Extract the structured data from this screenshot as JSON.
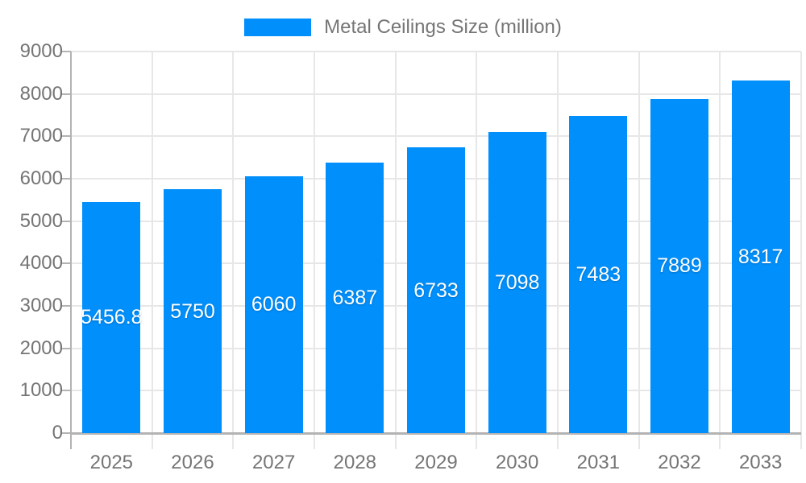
{
  "chart_data": {
    "type": "bar",
    "title": "",
    "xlabel": "",
    "ylabel": "",
    "legend_position": "top",
    "grid": true,
    "categories": [
      "2025",
      "2026",
      "2027",
      "2028",
      "2029",
      "2030",
      "2031",
      "2032",
      "2033"
    ],
    "series": [
      {
        "name": "Metal Ceilings Size (million)",
        "values": [
          5456.8,
          5750,
          6060,
          6387,
          6733,
          7098,
          7483,
          7889,
          8317
        ]
      }
    ],
    "value_labels": [
      "5456.8",
      "5750",
      "6060",
      "6387",
      "6733",
      "7098",
      "7483",
      "7889",
      "8317"
    ],
    "ylim": [
      0,
      9000
    ],
    "ytick_interval": 1000,
    "yticks": [
      "0",
      "1000",
      "2000",
      "3000",
      "4000",
      "5000",
      "6000",
      "7000",
      "8000",
      "9000"
    ],
    "colors": {
      "bar": "#008FFB",
      "bar_label": "#ffffff",
      "axis_label": "#757575",
      "grid_line": "#e7e7e7",
      "axis_line": "#b3b3b3"
    }
  }
}
